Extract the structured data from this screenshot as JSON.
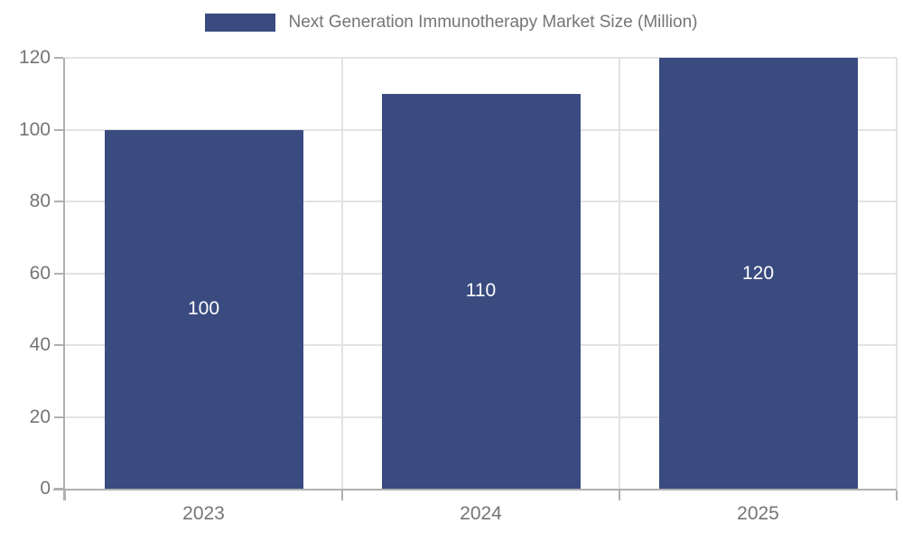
{
  "chart_data": {
    "type": "bar",
    "title": "Next Generation Immunotherapy Market Size (Million)",
    "categories": [
      "2023",
      "2024",
      "2025"
    ],
    "values": [
      100,
      110,
      120
    ],
    "data_labels": [
      "100",
      "110",
      "120"
    ],
    "xlabel": "",
    "ylabel": "",
    "ylim": [
      0,
      120
    ],
    "yticks": [
      0,
      20,
      40,
      60,
      80,
      100,
      120
    ],
    "grid": true,
    "legend_position": "top-center",
    "colors": {
      "bar": "#3A4B80",
      "text": "#757575",
      "gridline": "#e3e3e3",
      "axis": "#b0b0b0",
      "data_label": "#ffffff",
      "background": "#ffffff"
    }
  }
}
